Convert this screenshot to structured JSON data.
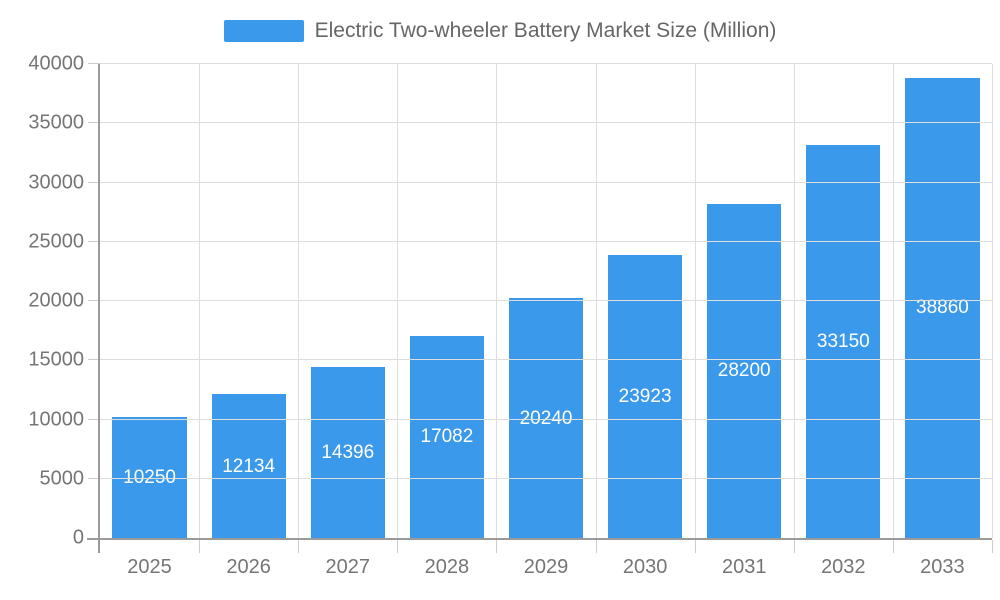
{
  "chart_data": {
    "type": "bar",
    "title": "Electric Two-wheeler Battery Market Size (Million)",
    "categories": [
      "2025",
      "2026",
      "2027",
      "2028",
      "2029",
      "2030",
      "2031",
      "2032",
      "2033"
    ],
    "values": [
      10250,
      12134,
      14396,
      17082,
      20240,
      23923,
      28200,
      33150,
      38860
    ],
    "series": [
      {
        "name": "Electric Two-wheeler Battery Market Size (Million)",
        "values": [
          10250,
          12134,
          14396,
          17082,
          20240,
          23923,
          28200,
          33150,
          38860
        ]
      }
    ],
    "xlabel": "",
    "ylabel": "",
    "ylim": [
      0,
      40000
    ],
    "y_ticks": [
      0,
      5000,
      10000,
      15000,
      20000,
      25000,
      30000,
      35000,
      40000
    ],
    "grid": true,
    "legend_position": "top",
    "bar_label_position": "inside-center",
    "colors": {
      "bar": "#3B99EC",
      "bar_label": "#FFFFFF",
      "axis_label": "#757575",
      "title": "#666666",
      "gridline": "#DDDDDD",
      "tick": "#CCCCCC",
      "axis_line": "#9A9A9A",
      "background": "#FFFFFF"
    }
  }
}
